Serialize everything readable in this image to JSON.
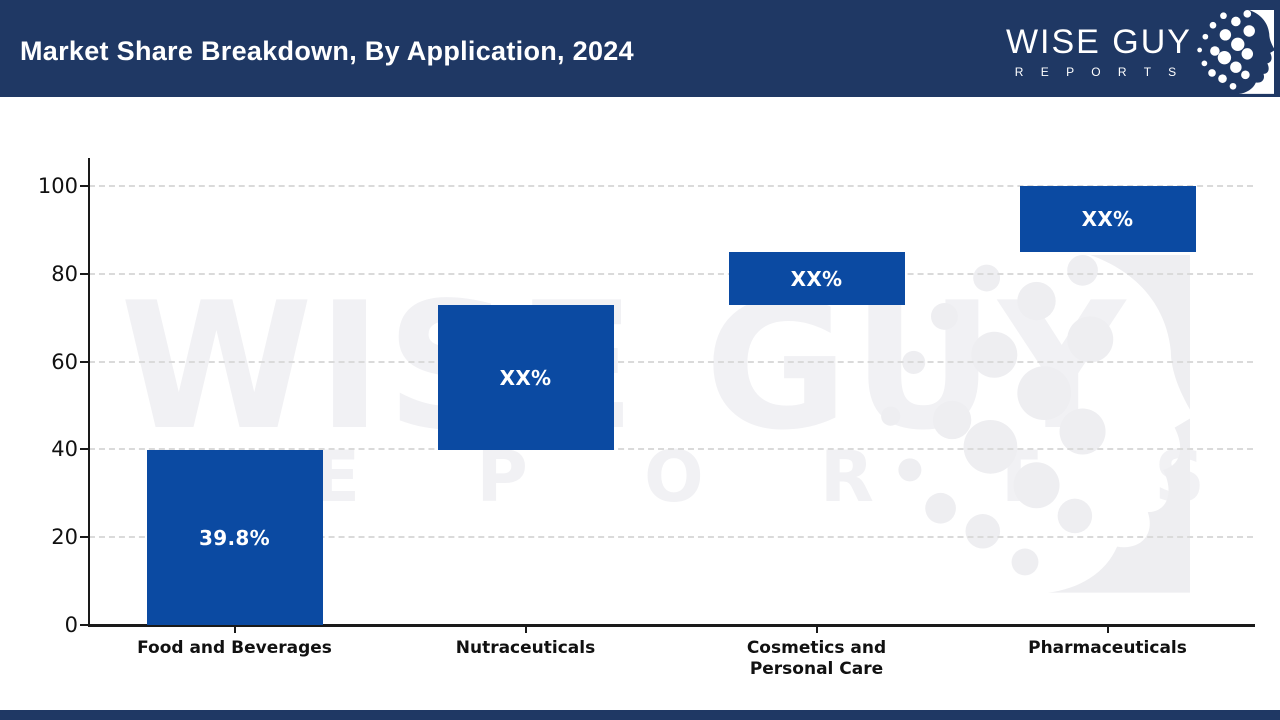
{
  "header": {
    "title": "Market Share Breakdown, By Application, 2024",
    "logo": {
      "line1": "WISE GUY",
      "line2": "R E P O R T S"
    }
  },
  "watermark": {
    "line1": "WISE GUY",
    "line2": "R E P O R T S"
  },
  "chart_data": {
    "type": "bar",
    "subtype": "waterfall",
    "title": "Market Share Breakdown, By Application, 2024",
    "categories": [
      "Food and Beverages",
      "Nutraceuticals",
      "Cosmetics and\nPersonal Care",
      "Pharmaceuticals"
    ],
    "series": [
      {
        "name": "Market Share",
        "segment_start": [
          0,
          39.8,
          72.8,
          84.8
        ],
        "segment_end": [
          39.8,
          72.8,
          84.8,
          100
        ],
        "values": [
          39.8,
          33.0,
          12.0,
          15.2
        ],
        "labels": [
          "39.8%",
          "XX%",
          "XX%",
          "XX%"
        ]
      }
    ],
    "xlabel": "",
    "ylabel": "",
    "ylim": [
      0,
      100
    ],
    "yticks": [
      0,
      20,
      40,
      60,
      80,
      100
    ],
    "grid": "horizontal-dashed",
    "legend": "none",
    "bar_color": "#0b4aa2",
    "bar_label_color": "#ffffff"
  },
  "colors": {
    "header_bg": "#1f3864",
    "footer_bg": "#1f3864",
    "bar": "#0b4aa2",
    "gridline": "#dadada",
    "axis": "#1a1a1a",
    "watermark": "#f1f1f4"
  }
}
